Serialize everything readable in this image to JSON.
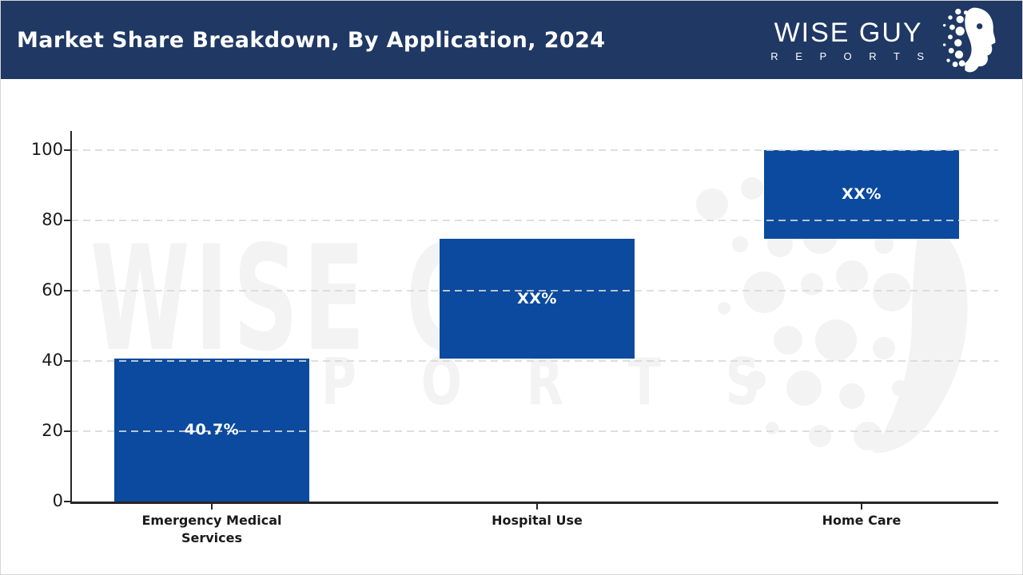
{
  "header": {
    "bg_color": "#1f3864",
    "title": "Market Share Breakdown, By Application, 2024",
    "logo": {
      "line1": "WISE GUY",
      "line2": "R E P O R T S"
    }
  },
  "watermark": {
    "line1": "WISE GUY",
    "line2": "R E P O R T S"
  },
  "chart_data": {
    "type": "bar",
    "variant": "waterfall",
    "title": "Market Share Breakdown, By Application, 2024",
    "categories": [
      "Emergency Medical Services",
      "Hospital Use",
      "Home Care"
    ],
    "segments": [
      {
        "category": "Emergency Medical Services",
        "start": 0,
        "end": 40.7,
        "label": "40.7%"
      },
      {
        "category": "Hospital Use",
        "start": 40.7,
        "end": 74.8,
        "label": "XX%"
      },
      {
        "category": "Home Care",
        "start": 74.8,
        "end": 100,
        "label": "XX%"
      }
    ],
    "xlabel": "",
    "ylabel": "",
    "ylim": [
      0,
      100
    ],
    "yticks": [
      0,
      20,
      40,
      60,
      80,
      100
    ],
    "grid": "horizontal-dashed",
    "legend": "none",
    "bar_color": "#0b4a9e",
    "value_label_color": "#ffffff"
  }
}
